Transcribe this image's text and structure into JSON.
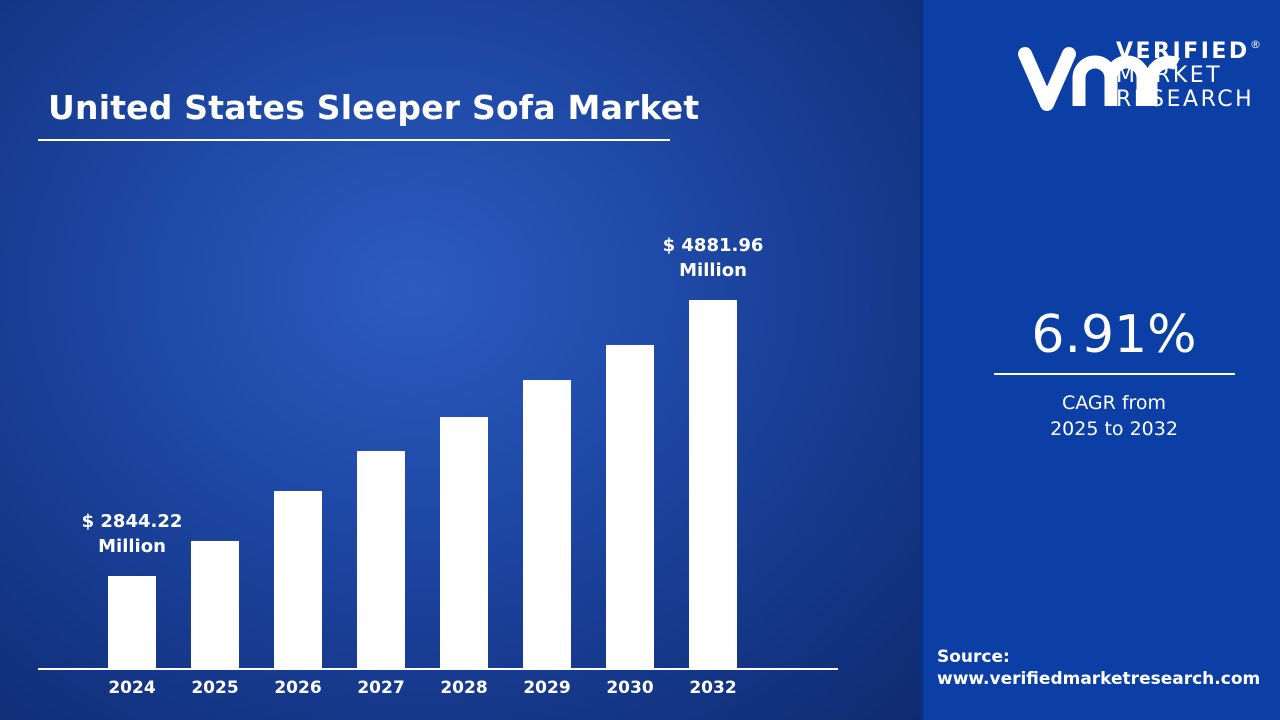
{
  "brand": {
    "line1": "VERIFIED",
    "line2": "MARKET",
    "line3": "RESEARCH",
    "registered": "®",
    "monogram": "vmr"
  },
  "stat": {
    "value": "6.91%",
    "label_line1": "CAGR from",
    "label_line2": "2025 to 2032"
  },
  "source": {
    "label": "Source:",
    "url": "www.verifiedmarketresearch.com"
  },
  "colors": {
    "bar": "#ffffff",
    "panel": "#0c3fa6",
    "background": "#1f4aa8"
  },
  "chart_data": {
    "type": "bar",
    "title": "United States Sleeper Sofa Market",
    "categories": [
      "2024",
      "2025",
      "2026",
      "2027",
      "2028",
      "2029",
      "2030",
      "2032"
    ],
    "values": [
      2844.22,
      3103,
      3472,
      3767,
      4018,
      4291,
      4550,
      4881.96
    ],
    "unit": "$ Million",
    "data_labels": [
      {
        "index": 0,
        "line1": "$ 2844.22",
        "line2": "Million"
      },
      {
        "index": 7,
        "line1": "$ 4881.96",
        "line2": "Million"
      }
    ],
    "xlabel": "",
    "ylabel": "",
    "grid": false,
    "legend": "none"
  }
}
